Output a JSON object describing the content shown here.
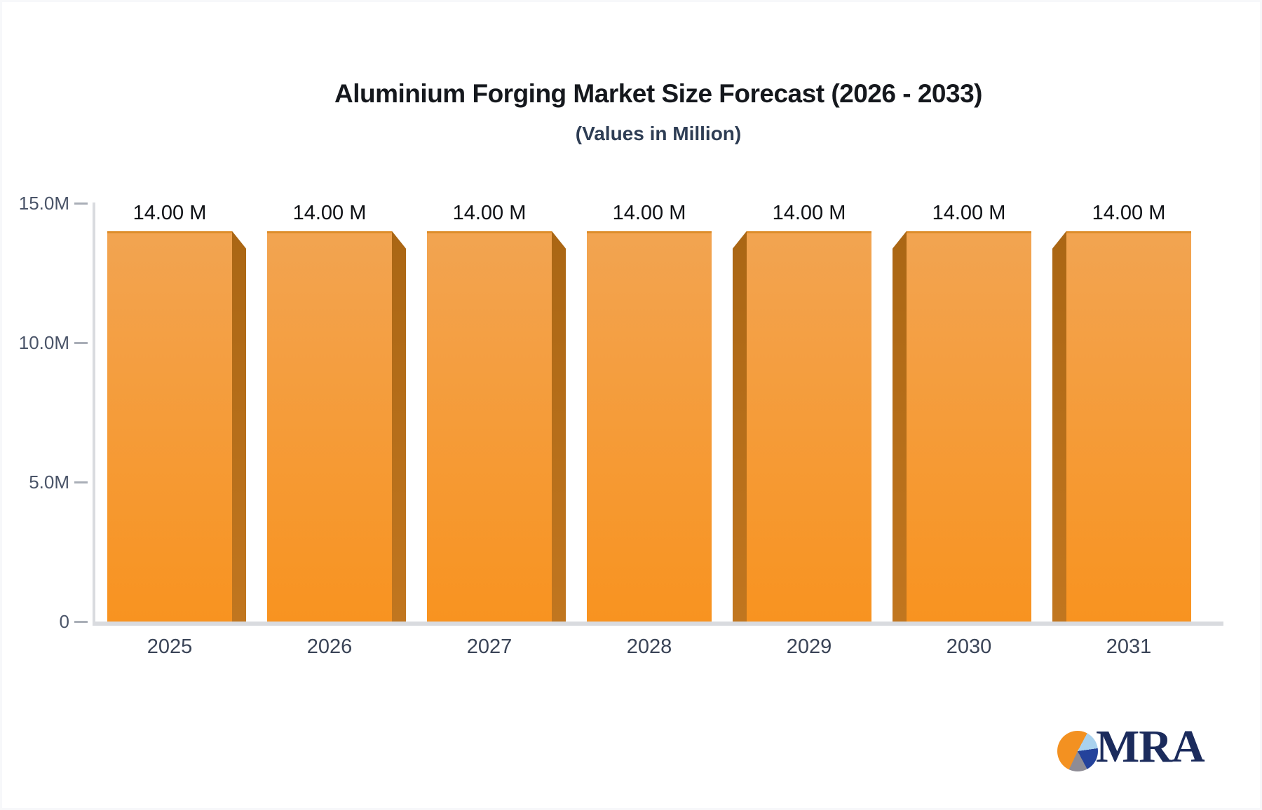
{
  "chart_data": {
    "type": "bar",
    "title": "Aluminium Forging Market Size Forecast (2026 - 2033)",
    "subtitle": "(Values in Million)",
    "categories": [
      "2025",
      "2026",
      "2027",
      "2028",
      "2029",
      "2030",
      "2031"
    ],
    "values": [
      14,
      14,
      14,
      14,
      14,
      14,
      14
    ],
    "value_labels": [
      "14.00 M",
      "14.00 M",
      "14.00 M",
      "14.00 M",
      "14.00 M",
      "14.00 M",
      "14.00 M"
    ],
    "unit": "Million",
    "ylim": [
      0,
      15
    ],
    "y_ticks": [
      {
        "label": "15.0M",
        "value": 15
      },
      {
        "label": "10.0M",
        "value": 10
      },
      {
        "label": "5.0M",
        "value": 5
      },
      {
        "label": "0",
        "value": 0
      }
    ],
    "grid": false,
    "legend": false,
    "bar_style": "3d-extruded-perspective",
    "colors": {
      "bar_face_top": "#f2a451",
      "bar_face_bottom": "#f89320",
      "bar_side_top": "#aa6614",
      "bar_side_bottom": "#c1761f",
      "bar_top_edge": "#dd8e2b",
      "axis_line": "#d9dbdf",
      "tick_mark": "#a9aeb7",
      "y_label": "#4a5468",
      "x_label": "#3a4457",
      "value_label": "#0f1115",
      "title": "#15181d",
      "subtitle": "#2e3d54",
      "logo_text": "#1b2b5c"
    }
  },
  "logo": {
    "text": "MRA",
    "icon": "pie-chart-icon",
    "pie_slices": [
      {
        "color": "#f39121",
        "from": 0,
        "to": 28
      },
      {
        "color": "#a9d2ee",
        "from": 28,
        "to": 82
      },
      {
        "color": "#24429b",
        "from": 82,
        "to": 152
      },
      {
        "color": "#8e8c95",
        "from": 152,
        "to": 205
      },
      {
        "color": "#f39121",
        "from": 205,
        "to": 360
      }
    ]
  }
}
